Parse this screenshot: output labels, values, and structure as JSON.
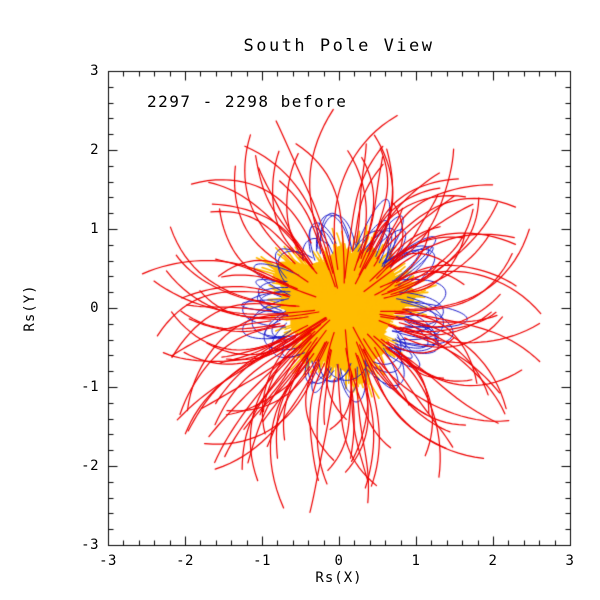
{
  "title": "South Pole View",
  "annotation": "2297 - 2298 before",
  "axes": {
    "x": {
      "label": "Rs(X)",
      "min": -3,
      "max": 3,
      "major_ticks": [
        -3,
        -2,
        -1,
        0,
        1,
        2,
        3
      ],
      "tick_labels": [
        "-3",
        "-2",
        "-1",
        "0",
        "1",
        "2",
        "3"
      ],
      "minor_per_major": 5
    },
    "y": {
      "label": "Rs(Y)",
      "min": -3,
      "max": 3,
      "major_ticks": [
        -3,
        -2,
        -1,
        0,
        1,
        2,
        3
      ],
      "tick_labels": [
        "-3",
        "-2",
        "-1",
        "0",
        "1",
        "2",
        "3"
      ],
      "minor_per_major": 5
    }
  },
  "colors": {
    "background": "#ffffff",
    "axis": "#000000",
    "open_field": "#ee0000",
    "closed_field": "#1c1ccd",
    "surface": "#ffbc00"
  },
  "chart_data": {
    "type": "line",
    "title": "South Pole View",
    "subtitle": "2297 - 2298 before",
    "xlabel": "Rs(X)",
    "ylabel": "Rs(Y)",
    "xlim": [
      -3,
      3
    ],
    "ylim": [
      -3,
      3
    ],
    "grid": false,
    "legend": "none",
    "description": "Coronal magnetic field line map viewed from the solar south pole: gold = solar surface footpoint region (radius ~1 Rs), red = open field lines extending to ~2.6 Rs, blue = closed field loops reaching ~1.8 Rs",
    "seed": 987654321,
    "surface": {
      "center": [
        0.05,
        0.0
      ],
      "base_radius": 0.78,
      "radius_harmonic_amps": [
        0.12,
        0.1,
        0.07,
        0.05
      ],
      "radius_harmonic_freqs": [
        3,
        5,
        8,
        13
      ],
      "spike_count": 300,
      "spike_reach": 1.3
    },
    "open_field_lines": {
      "count": 150,
      "start_radius": [
        0.45,
        0.95
      ],
      "end_radius": [
        1.3,
        2.65
      ],
      "angular_drift_max": 0.9,
      "line_width": 1.2
    },
    "closed_loop_clusters": [
      {
        "angle_deg": -5,
        "spread_deg": 18,
        "count": 11,
        "apex_radius": [
          1.2,
          1.85
        ]
      },
      {
        "angle_deg": 48,
        "spread_deg": 20,
        "count": 12,
        "apex_radius": [
          1.1,
          1.65
        ]
      },
      {
        "angle_deg": 100,
        "spread_deg": 18,
        "count": 7,
        "apex_radius": [
          0.95,
          1.3
        ]
      },
      {
        "angle_deg": 160,
        "spread_deg": 22,
        "count": 9,
        "apex_radius": [
          1.0,
          1.5
        ]
      },
      {
        "angle_deg": 205,
        "spread_deg": 18,
        "count": 8,
        "apex_radius": [
          0.95,
          1.45
        ]
      },
      {
        "angle_deg": 262,
        "spread_deg": 20,
        "count": 8,
        "apex_radius": [
          0.9,
          1.3
        ]
      },
      {
        "angle_deg": 315,
        "spread_deg": 16,
        "count": 7,
        "apex_radius": [
          0.9,
          1.35
        ]
      }
    ]
  }
}
